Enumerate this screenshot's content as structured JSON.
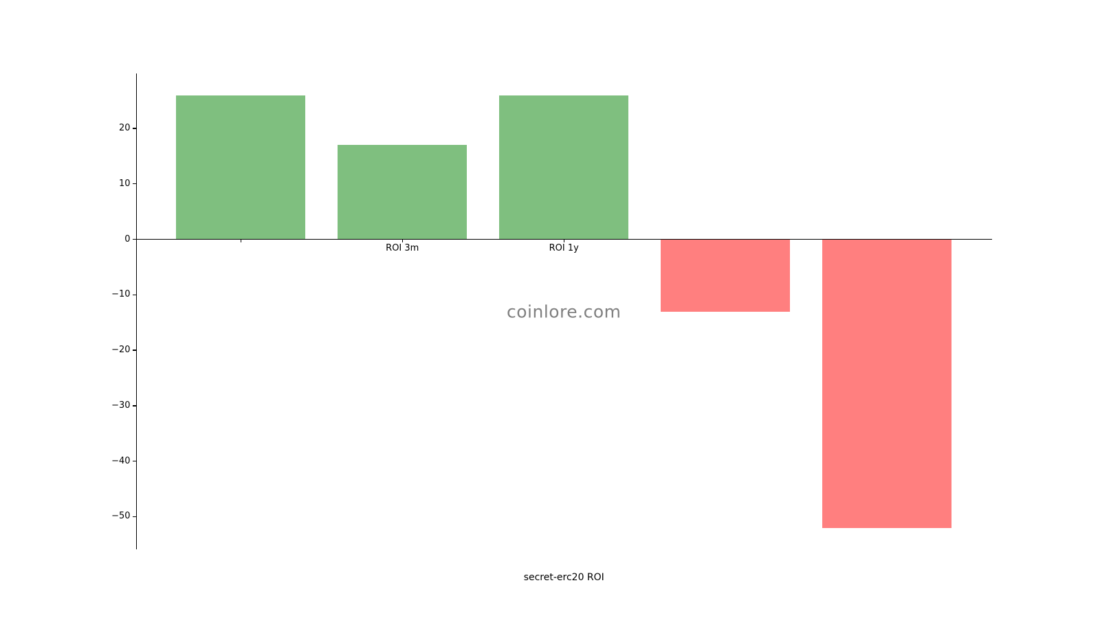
{
  "watermark": "coinlore.com",
  "chart_data": {
    "type": "bar",
    "title": "",
    "xlabel": "secret-erc20 ROI",
    "ylabel": "",
    "categories": [
      "",
      "ROI 3m",
      "ROI 1y",
      "",
      ""
    ],
    "values": [
      26,
      17,
      26,
      -13,
      -52
    ],
    "yticks": [
      20,
      10,
      0,
      -10,
      -20,
      -30,
      -40,
      -50
    ],
    "ylim": [
      -55.9,
      29.9
    ],
    "xlim": [
      -0.65,
      4.65
    ],
    "bar_width": 0.8,
    "grid": false,
    "legend_position": "none",
    "colors": {
      "positive_bar": "#7fbf7f",
      "negative_bar": "#ff7f7f",
      "axis": "#000000",
      "tick_label": "#000000",
      "watermark": "#808080"
    }
  }
}
